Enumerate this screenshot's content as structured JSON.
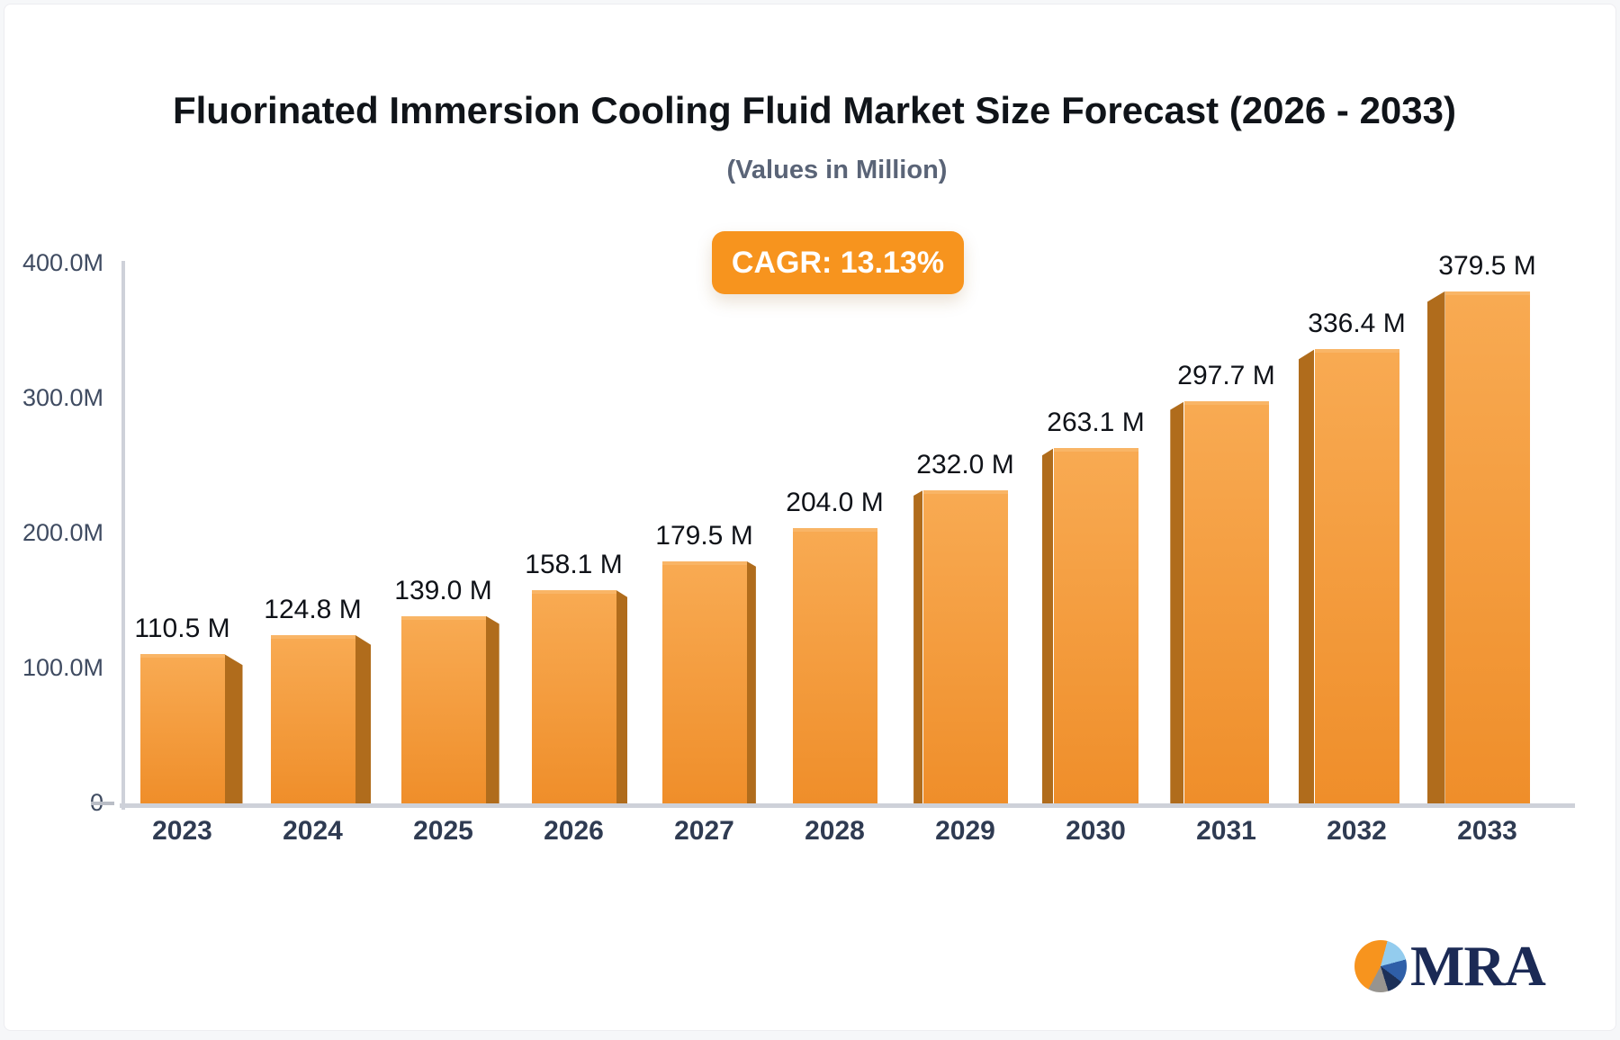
{
  "header": {
    "title": "Fluorinated Immersion Cooling Fluid Market Size Forecast (2026 - 2033)",
    "subtitle": "(Values in Million)",
    "cagr_label": "CAGR: 13.13%"
  },
  "branding": {
    "logo_text": "MRA"
  },
  "colors": {
    "accent_orange": "#f7941e",
    "bar_face_top": "#f8aa52",
    "bar_face_bottom": "#ef8e2a",
    "bar_top_highlight": "#f9b566",
    "bar_side": "#b06c1c",
    "axis": "#ced1d9",
    "tick": "#b9bdc6",
    "title_text": "#101419",
    "subtitle_text": "#5a6477",
    "ytick_text": "#3f4b61",
    "xtick_text": "#2f3b52",
    "value_text": "#0f1218",
    "logo_navy": "#1b2a55",
    "logo_lightblue": "#93ccee",
    "logo_blue": "#2f5fa8",
    "logo_darknavy": "#1c3058",
    "logo_gray": "#97948f"
  },
  "chart_data": {
    "type": "bar",
    "title": "Fluorinated Immersion Cooling Fluid Market Size Forecast (2026 - 2033)",
    "subtitle": "(Values in Million)",
    "cagr": "13.13%",
    "categories": [
      "2023",
      "2024",
      "2025",
      "2026",
      "2027",
      "2028",
      "2029",
      "2030",
      "2031",
      "2032",
      "2033"
    ],
    "values": [
      110.5,
      124.8,
      139.0,
      158.1,
      179.5,
      204.0,
      232.0,
      263.1,
      297.7,
      336.4,
      379.5
    ],
    "value_labels": [
      "110.5 M",
      "124.8 M",
      "139.0 M",
      "158.1 M",
      "179.5 M",
      "204.0 M",
      "232.0 M",
      "263.1 M",
      "297.7 M",
      "336.4 M",
      "379.5 M"
    ],
    "y_tick_labels": [
      "400.0M",
      "300.0M",
      "200.0M",
      "100.0M",
      "0"
    ],
    "ylim": [
      0,
      400
    ],
    "xlabel": "",
    "ylabel": "",
    "grid": "off",
    "legend": "none",
    "style": "pseudo-3d bars, orange gradient, central vanishing point"
  }
}
